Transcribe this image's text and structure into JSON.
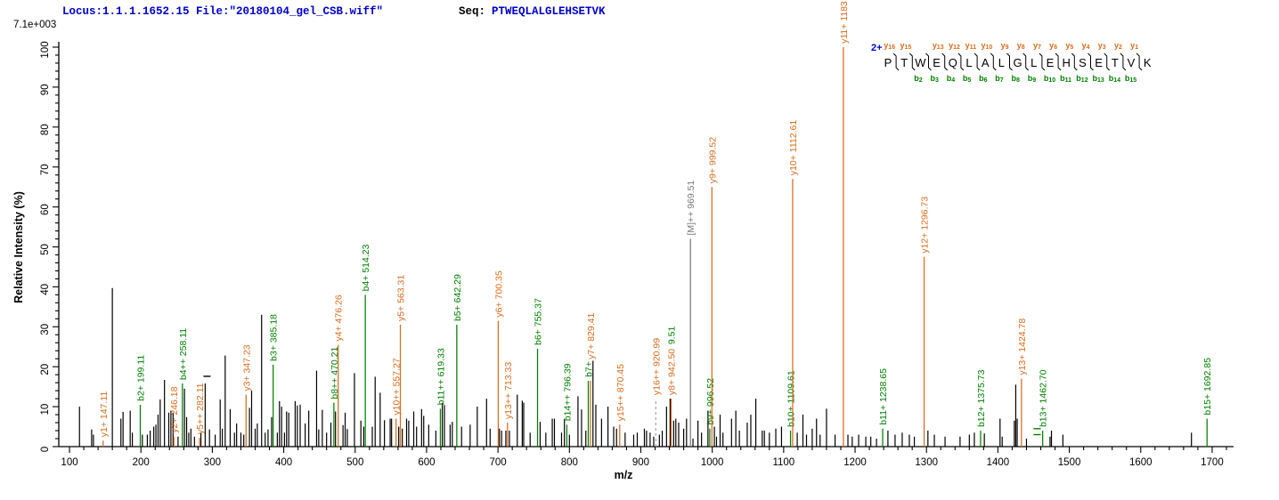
{
  "header": {
    "locus_file": "Locus:1.1.1.1652.15 File:\"20180104_gel_CSB.wiff\"",
    "seq_label": "Seq:",
    "seq_value": "PTWEQLALGLEHSETVK",
    "max_intensity": "7.1e+003"
  },
  "colors": {
    "header_blue": "#0000cc",
    "y_ion_orange": "#d96c1e",
    "b_ion_green": "#008000",
    "precursor_gray": "#787878",
    "peak_black": "#000000",
    "dashed_gray": "#a9a9a9"
  },
  "sequence_panel": {
    "charge": "2+",
    "residues": [
      "P",
      "T",
      "W",
      "E",
      "Q",
      "L",
      "A",
      "L",
      "G",
      "L",
      "E",
      "H",
      "S",
      "E",
      "T",
      "V",
      "K"
    ],
    "y_junction_labels": [
      "y16",
      "y15",
      "",
      "y13",
      "y12",
      "y11",
      "y10",
      "y9",
      "y8",
      "y7",
      "y6",
      "y5",
      "y4",
      "y3",
      "y2",
      "y1"
    ],
    "b_junction_labels": [
      "",
      "b2",
      "b3",
      "b4",
      "b5",
      "b6",
      "b7",
      "b8",
      "b9",
      "b10",
      "b11",
      "b12",
      "b13",
      "b14",
      "b15",
      ""
    ]
  },
  "chart_data": {
    "type": "bar",
    "subtype": "ms2-peptide-fragmentation-spectrum",
    "xlabel": "m/z",
    "ylabel": "Relative  Intensity (%)",
    "xlim": [
      85,
      1730
    ],
    "ylim": [
      0,
      100
    ],
    "x_major_ticks": [
      100,
      200,
      300,
      400,
      500,
      600,
      700,
      800,
      900,
      1000,
      1100,
      1200,
      1300,
      1400,
      1500,
      1600,
      1700
    ],
    "x_minor_step": 20,
    "y_major_ticks": [
      0,
      10,
      20,
      30,
      40,
      50,
      60,
      70,
      80,
      90,
      100
    ],
    "y_minor_step": 2,
    "grid": false,
    "max_intensity_label": "7.1e+003",
    "labeled_ions": [
      {
        "label": "y1+ 147.11",
        "mz": 147.11,
        "intensity": 1.5,
        "series": "y"
      },
      {
        "label": "b2+ 199.11",
        "mz": 199.11,
        "intensity": 10.5,
        "series": "b"
      },
      {
        "label": "y2+ 246.18",
        "mz": 246.18,
        "intensity": 2.5,
        "series": "y"
      },
      {
        "label": "b4++ 258.11",
        "mz": 258.11,
        "intensity": 15.8,
        "series": "b"
      },
      {
        "label": "y5++ 282.11",
        "mz": 282.11,
        "intensity": 2.2,
        "series": "y"
      },
      {
        "label": "y3+ 347.23",
        "mz": 347.23,
        "intensity": 13,
        "series": "y"
      },
      {
        "label": "b3+ 385.18",
        "mz": 385.18,
        "intensity": 20.5,
        "series": "b"
      },
      {
        "label": "b8++ 470.21",
        "mz": 470.21,
        "intensity": 11,
        "series": "b"
      },
      {
        "label": "y4+ 476.26",
        "mz": 476.26,
        "intensity": 25.5,
        "series": "y"
      },
      {
        "label": "b4+ 514.23",
        "mz": 514.23,
        "intensity": 38,
        "series": "b"
      },
      {
        "label": "y10++ 557.27",
        "mz": 557.27,
        "intensity": 7,
        "series": "y"
      },
      {
        "label": "y5+ 563.31",
        "mz": 563.31,
        "intensity": 30.5,
        "series": "y"
      },
      {
        "label": "b11++ 619.33",
        "mz": 619.33,
        "intensity": 9.5,
        "series": "b"
      },
      {
        "label": "b5+ 642.29",
        "mz": 642.29,
        "intensity": 30.5,
        "series": "b"
      },
      {
        "label": "y6+ 700.35",
        "mz": 700.35,
        "intensity": 31.5,
        "series": "y"
      },
      {
        "label": "y13++ 713.33",
        "mz": 713.33,
        "intensity": 6,
        "series": "y"
      },
      {
        "label": "b6+ 755.37",
        "mz": 755.37,
        "intensity": 24.5,
        "series": "b"
      },
      {
        "label": "b14++ 796.39",
        "mz": 796.39,
        "intensity": 5.5,
        "series": "b"
      },
      {
        "label": "b7+",
        "mz": 826.41,
        "intensity": 16.5,
        "series": "b"
      },
      {
        "label": "y7+ 829.41",
        "mz": 829.41,
        "intensity": 16.5,
        "series": "y",
        "text_shift": 20
      },
      {
        "label": "y15++ 870.45",
        "mz": 870.45,
        "intensity": 5.5,
        "series": "y"
      },
      {
        "label": "y16++ 920.99",
        "mz": 920.99,
        "intensity": 12,
        "series": "y",
        "dashed": true
      },
      {
        "label": "y8+ 942.50",
        "mz": 942.5,
        "intensity": 12,
        "series": "y"
      },
      {
        "label": "9.51",
        "mz": 939.51,
        "intensity": 12,
        "series": "b",
        "no_line": true,
        "line_mz": 942.5,
        "text_shift": 57
      },
      {
        "label": "[M]++ 969.51",
        "mz": 969.51,
        "intensity": 52,
        "series": "precursor"
      },
      {
        "label": "b9+ 996.52",
        "mz": 996.52,
        "intensity": 4.5,
        "series": "b"
      },
      {
        "label": "y9+ 999.52",
        "mz": 999.52,
        "intensity": 65,
        "series": "y"
      },
      {
        "label": "b10+ 1109.61",
        "mz": 1109.61,
        "intensity": 4,
        "series": "b"
      },
      {
        "label": "y10+ 1112.61",
        "mz": 1112.61,
        "intensity": 67,
        "series": "y"
      },
      {
        "label": "y11+ 1183.64",
        "mz": 1183.64,
        "intensity": 100,
        "series": "y"
      },
      {
        "label": "b11+ 1238.65",
        "mz": 1238.65,
        "intensity": 4.5,
        "series": "b"
      },
      {
        "label": "y12+ 1296.73",
        "mz": 1296.73,
        "intensity": 47.5,
        "series": "y"
      },
      {
        "label": "b12+ 1375.73",
        "mz": 1375.73,
        "intensity": 4,
        "series": "b"
      },
      {
        "label": "y13+ 1424.78",
        "mz": 1424.78,
        "intensity": 17,
        "series": "y",
        "line_mz": 1433
      },
      {
        "label": "b13+ 1462.70",
        "mz": 1462.7,
        "intensity": 4,
        "series": "b"
      },
      {
        "label": "b15+ 1692.85",
        "mz": 1692.85,
        "intensity": 7,
        "series": "b"
      }
    ],
    "peaks": [
      [
        114,
        10
      ],
      [
        131,
        4.3
      ],
      [
        133.5,
        3
      ],
      [
        160,
        39.7
      ],
      [
        172,
        7
      ],
      [
        175,
        8.7
      ],
      [
        185,
        9
      ],
      [
        188,
        3.5
      ],
      [
        202,
        3
      ],
      [
        209,
        3
      ],
      [
        213,
        4
      ],
      [
        218,
        5
      ],
      [
        221,
        5.5
      ],
      [
        224,
        8
      ],
      [
        227,
        11.8
      ],
      [
        233,
        16.7
      ],
      [
        239,
        8.5
      ],
      [
        242,
        9
      ],
      [
        245,
        8.5
      ],
      [
        252,
        2.5
      ],
      [
        261,
        14.5
      ],
      [
        264,
        7.4
      ],
      [
        267,
        3.5
      ],
      [
        270,
        4.5
      ],
      [
        275,
        2.5
      ],
      [
        284,
        3.5
      ],
      [
        290,
        15.8
      ],
      [
        296,
        4.3
      ],
      [
        304,
        3
      ],
      [
        311,
        11.8
      ],
      [
        314,
        4.5
      ],
      [
        318,
        22.8
      ],
      [
        325,
        9.4
      ],
      [
        331,
        3.5
      ],
      [
        334,
        5.8
      ],
      [
        340,
        3.5
      ],
      [
        344,
        3
      ],
      [
        352,
        9.7
      ],
      [
        355,
        14
      ],
      [
        360,
        4.5
      ],
      [
        363,
        5.8
      ],
      [
        369,
        33
      ],
      [
        374,
        3.5
      ],
      [
        378,
        4.3
      ],
      [
        383,
        7.4
      ],
      [
        391,
        3.5
      ],
      [
        394,
        11.4
      ],
      [
        397,
        10
      ],
      [
        401,
        3.5
      ],
      [
        404,
        8.8
      ],
      [
        407,
        8.5
      ],
      [
        416,
        11.4
      ],
      [
        419,
        10.3
      ],
      [
        423,
        10.5
      ],
      [
        430,
        5.8
      ],
      [
        435,
        9
      ],
      [
        446,
        19
      ],
      [
        449,
        4.3
      ],
      [
        454,
        9.2
      ],
      [
        460,
        3.5
      ],
      [
        466,
        6
      ],
      [
        472.5,
        8.8
      ],
      [
        483,
        5.4
      ],
      [
        486,
        8.5
      ],
      [
        489,
        4.4
      ],
      [
        499,
        18.4
      ],
      [
        508,
        6.5
      ],
      [
        512,
        5
      ],
      [
        524,
        5
      ],
      [
        528,
        17.5
      ],
      [
        535,
        13.5
      ],
      [
        541,
        6.6
      ],
      [
        549,
        7
      ],
      [
        551,
        7
      ],
      [
        561,
        5
      ],
      [
        566,
        4.5
      ],
      [
        572,
        7
      ],
      [
        575,
        6.5
      ],
      [
        582,
        8.8
      ],
      [
        586,
        5
      ],
      [
        593,
        9.4
      ],
      [
        596,
        7.7
      ],
      [
        603,
        5.5
      ],
      [
        613,
        4
      ],
      [
        622,
        11
      ],
      [
        625,
        10.4
      ],
      [
        633,
        5.5
      ],
      [
        636,
        6.2
      ],
      [
        649,
        5
      ],
      [
        661,
        5.5
      ],
      [
        671,
        10
      ],
      [
        684,
        12
      ],
      [
        689,
        4.5
      ],
      [
        702,
        4.5
      ],
      [
        705,
        4
      ],
      [
        711,
        4
      ],
      [
        716,
        4
      ],
      [
        727,
        13
      ],
      [
        734,
        11.5
      ],
      [
        736,
        11
      ],
      [
        745,
        3.5
      ],
      [
        759,
        6.2
      ],
      [
        767,
        3.5
      ],
      [
        776,
        7
      ],
      [
        779,
        7
      ],
      [
        789,
        3.5
      ],
      [
        793,
        7
      ],
      [
        800,
        3
      ],
      [
        812,
        12.6
      ],
      [
        817,
        9.3
      ],
      [
        823,
        4
      ],
      [
        833,
        21.5
      ],
      [
        837,
        10.5
      ],
      [
        845,
        7
      ],
      [
        854,
        10
      ],
      [
        862,
        5
      ],
      [
        866,
        4.5
      ],
      [
        878,
        3.5
      ],
      [
        890,
        3
      ],
      [
        895,
        3.5
      ],
      [
        905,
        4.5
      ],
      [
        908,
        4
      ],
      [
        913,
        3.5
      ],
      [
        918,
        2.5
      ],
      [
        926,
        3
      ],
      [
        930,
        4
      ],
      [
        936,
        10
      ],
      [
        941,
        12
      ],
      [
        946,
        6.5
      ],
      [
        949,
        7
      ],
      [
        953,
        6
      ],
      [
        960,
        4.5
      ],
      [
        964,
        7
      ],
      [
        973,
        2
      ],
      [
        980,
        6.5
      ],
      [
        985,
        3.5
      ],
      [
        994,
        9
      ],
      [
        1003,
        5
      ],
      [
        1006,
        2.5
      ],
      [
        1011,
        8
      ],
      [
        1015,
        3.5
      ],
      [
        1027,
        7
      ],
      [
        1033,
        9
      ],
      [
        1038,
        4
      ],
      [
        1049,
        6
      ],
      [
        1054,
        8
      ],
      [
        1061,
        12
      ],
      [
        1070,
        4
      ],
      [
        1073,
        4
      ],
      [
        1080,
        3.5
      ],
      [
        1089,
        4.5
      ],
      [
        1097,
        5
      ],
      [
        1119,
        3.5
      ],
      [
        1127,
        8
      ],
      [
        1132,
        3
      ],
      [
        1140,
        4.5
      ],
      [
        1146,
        7
      ],
      [
        1151,
        3
      ],
      [
        1160,
        9.5
      ],
      [
        1172,
        3
      ],
      [
        1190,
        3
      ],
      [
        1196,
        2.5
      ],
      [
        1205,
        3
      ],
      [
        1215,
        2.5
      ],
      [
        1222,
        2.5
      ],
      [
        1230,
        2
      ],
      [
        1246,
        4
      ],
      [
        1256,
        3
      ],
      [
        1266,
        3.5
      ],
      [
        1276,
        3
      ],
      [
        1283,
        2.5
      ],
      [
        1302,
        4
      ],
      [
        1311,
        3
      ],
      [
        1326,
        2.5
      ],
      [
        1347,
        2.5
      ],
      [
        1360,
        3
      ],
      [
        1367,
        3.5
      ],
      [
        1381,
        3.3
      ],
      [
        1403,
        7
      ],
      [
        1406,
        2.5
      ],
      [
        1423,
        6.5
      ],
      [
        1425,
        15.5
      ],
      [
        1427,
        7
      ],
      [
        1440,
        2
      ],
      [
        1473,
        2.5
      ],
      [
        1475,
        4
      ],
      [
        1491,
        3
      ],
      [
        1671,
        3.5
      ]
    ],
    "dash_markers": [
      {
        "mz": 292.5,
        "intensity": 17.6,
        "color": "#000000"
      },
      {
        "mz": 1455,
        "intensity": 4.5,
        "color": "#008000"
      },
      {
        "mz": 1455,
        "intensity": 3,
        "color": "#008000"
      }
    ]
  }
}
